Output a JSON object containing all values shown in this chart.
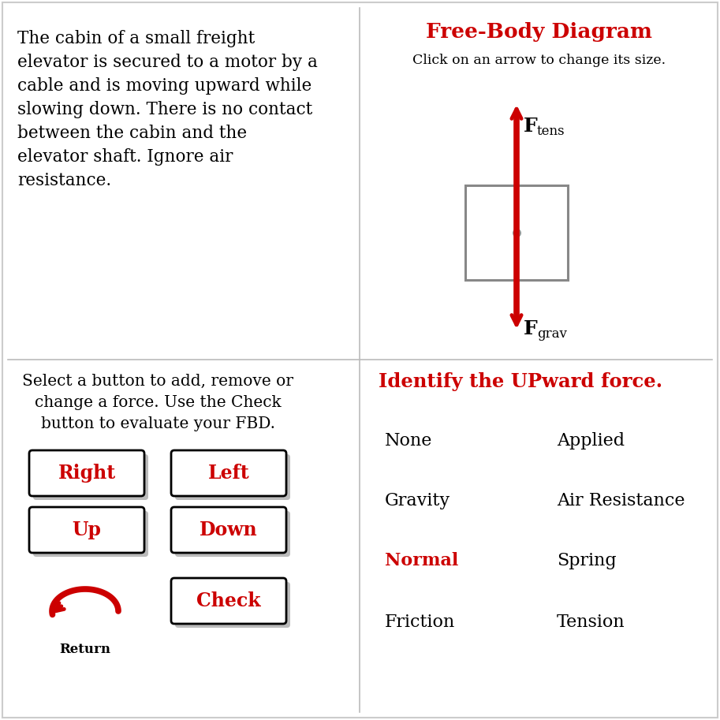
{
  "bg_color": "#ffffff",
  "title_fbd": "Free-Body Diagram",
  "subtitle_fbd": "Click on an arrow to change its size.",
  "description_lines": [
    "The cabin of a small freight",
    "elevator is secured to a motor by a",
    "cable and is moving upward while",
    "slowing down. There is no contact",
    "between the cabin and the",
    "elevator shaft. Ignore air",
    "resistance."
  ],
  "select_lines": [
    "Select a button to add, remove or",
    "change a force. Use the Check",
    "button to evaluate your FBD."
  ],
  "identify_title": "Identify the UPward force.",
  "force_options_col1": [
    "None",
    "Gravity",
    "Normal",
    "Friction"
  ],
  "force_options_col2": [
    "Applied",
    "Air Resistance",
    "Spring",
    "Tension"
  ],
  "force_red": [
    false,
    false,
    true,
    false
  ],
  "buttons_row1": [
    "Right",
    "Left"
  ],
  "buttons_row2": [
    "Up",
    "Down"
  ],
  "red_color": "#cc0000",
  "arrow_color": "#cc0000",
  "box_edge_color": "#888888",
  "dot_color": "#999999",
  "button_text_color": "#cc0000",
  "divider_color": "#bbbbbb",
  "shadow_color": "#bbbbbb",
  "border_color": "#cccccc"
}
